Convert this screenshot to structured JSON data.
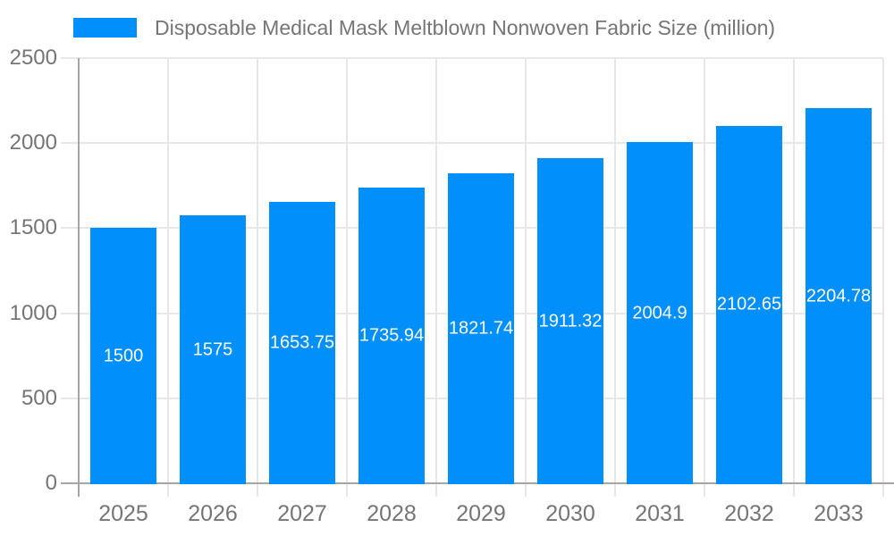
{
  "legend": {
    "series_label": "Disposable Medical Mask Meltblown Nonwoven Fabric Size (million)"
  },
  "chart_data": {
    "type": "bar",
    "title": "Disposable Medical Mask Meltblown Nonwoven Fabric Size (million)",
    "categories": [
      "2025",
      "2026",
      "2027",
      "2028",
      "2029",
      "2030",
      "2031",
      "2032",
      "2033"
    ],
    "values": [
      1500,
      1575,
      1653.75,
      1735.94,
      1821.74,
      1911.32,
      2004.9,
      2102.65,
      2204.78
    ],
    "bar_labels": [
      "1500",
      "1575",
      "1653.75",
      "1735.94",
      "1821.74",
      "1911.32",
      "2004.9",
      "2102.65",
      "2204.78"
    ],
    "xlabel": "",
    "ylabel": "",
    "y_ticks": [
      0,
      500,
      1000,
      1500,
      2000,
      2500
    ],
    "ylim": [
      0,
      2500
    ],
    "grid": "both",
    "legend_position": "top-left",
    "colors": {
      "bar": "#008FFB",
      "axis_text": "#757575",
      "gridline": "#e7e7e7",
      "axis_line": "#a6a6a6",
      "bar_label_text": "#ffffff"
    }
  }
}
